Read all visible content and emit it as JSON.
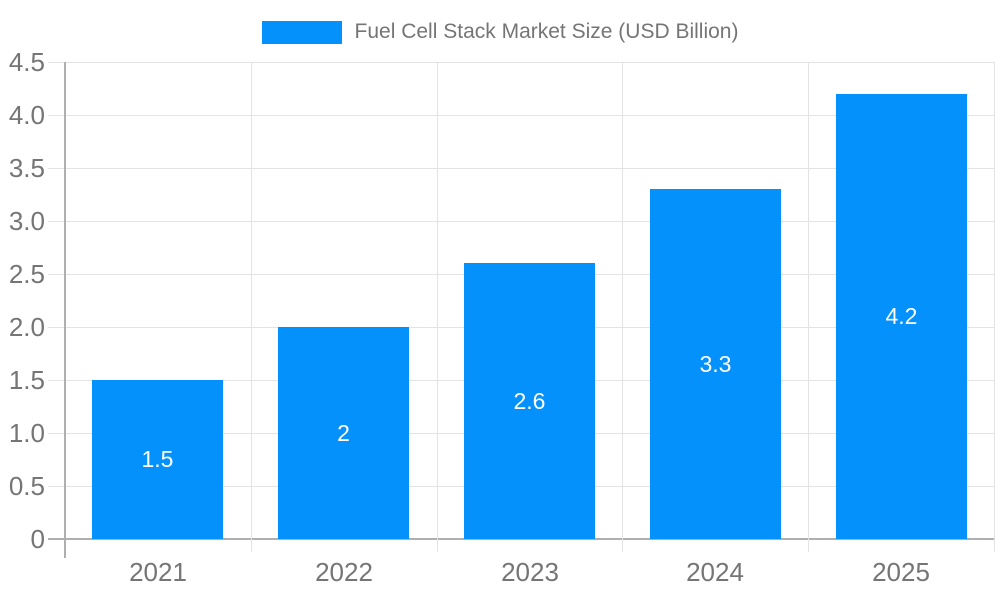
{
  "chart_data": {
    "type": "bar",
    "title": "Fuel Cell Stack Market Size (USD Billion)",
    "categories": [
      "2021",
      "2022",
      "2023",
      "2024",
      "2025"
    ],
    "values": [
      1.5,
      2,
      2.6,
      3.3,
      4.2
    ],
    "bar_labels": [
      "1.5",
      "2",
      "2.6",
      "3.3",
      "4.2"
    ],
    "xlabel": "",
    "ylabel": "",
    "ylim": [
      0,
      4.5
    ],
    "ytick_step": 0.5,
    "ytick_labels": [
      "0",
      "0.5",
      "1.0",
      "1.5",
      "2.0",
      "2.5",
      "3.0",
      "3.5",
      "4.0",
      "4.5"
    ],
    "grid": true,
    "legend_position": "top",
    "colors": {
      "bar": "#0591FB",
      "bar_label": "#FFFFFF",
      "axis_text": "#757575",
      "legend_text": "#757575",
      "gridline": "#E3E3E3",
      "axis_line": "#AFAFAF",
      "background": "#FFFFFF"
    }
  }
}
